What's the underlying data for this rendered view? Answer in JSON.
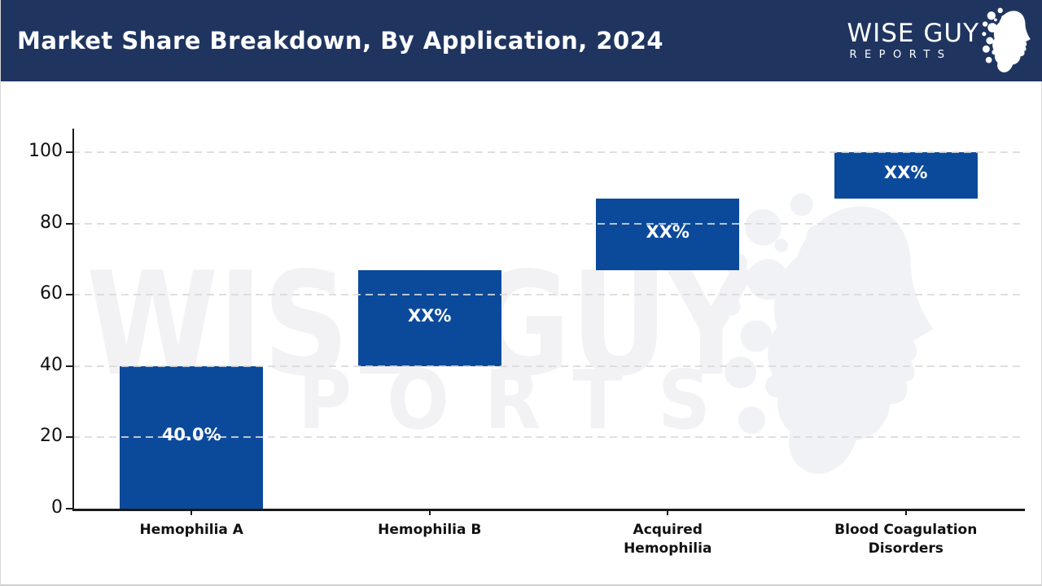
{
  "header": {
    "title": "Market Share Breakdown, By Application, 2024",
    "bg_color": "#1f3560",
    "logo": {
      "line1": "WISE GUY",
      "line2": "REPORTS"
    }
  },
  "watermark": {
    "line1": "WISE GUY",
    "line2": "REPORTS"
  },
  "chart_data": {
    "type": "bar",
    "subtype": "waterfall",
    "title": "Market Share Breakdown, By Application, 2024",
    "categories": [
      "Hemophilia A",
      "Hemophilia B",
      "Acquired Hemophilia",
      "Blood Coagulation Disorders"
    ],
    "categories_display": [
      "Hemophilia A",
      "Hemophilia B",
      "Acquired\nHemophilia",
      "Blood Coagulation\nDisorders"
    ],
    "series": [
      {
        "name": "Market Share",
        "segments": [
          {
            "category": "Hemophilia A",
            "start": 0,
            "end": 40,
            "value": 40,
            "label": "40.0%"
          },
          {
            "category": "Hemophilia B",
            "start": 40,
            "end": 67,
            "value": 27,
            "label": "XX%"
          },
          {
            "category": "Acquired Hemophilia",
            "start": 67,
            "end": 87,
            "value": 20,
            "label": "XX%"
          },
          {
            "category": "Blood Coagulation Disorders",
            "start": 87,
            "end": 100,
            "value": 13,
            "label": "XX%"
          }
        ]
      }
    ],
    "xlabel": "",
    "ylabel": "",
    "ylim": [
      0,
      100
    ],
    "yticks": [
      0,
      20,
      40,
      60,
      80,
      100
    ],
    "grid": "horizontal dashed",
    "legend": "none",
    "bar_color": "#0b4a9b",
    "bar_label_color": "#ffffff"
  }
}
